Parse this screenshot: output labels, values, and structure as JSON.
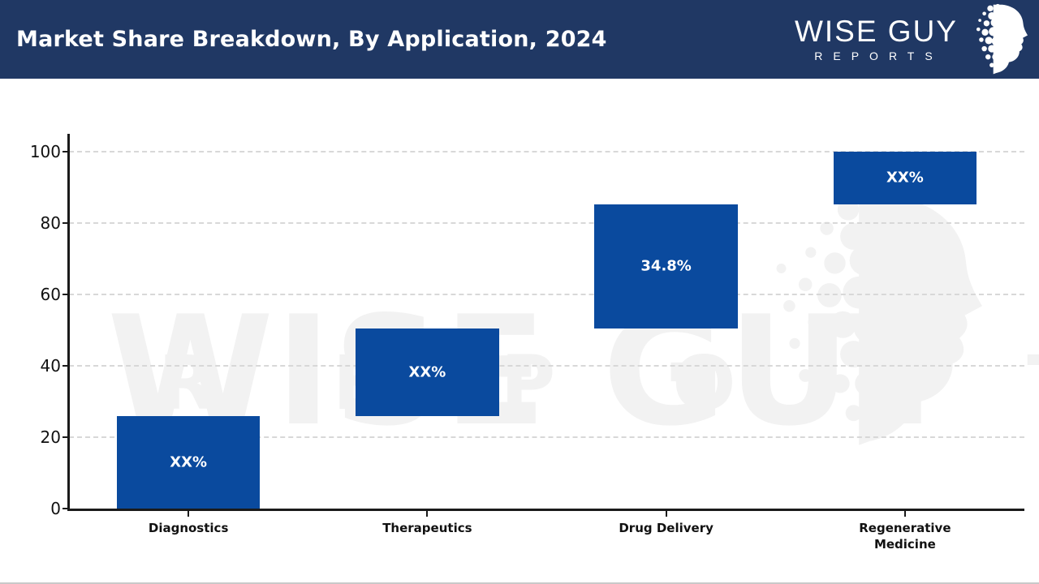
{
  "header": {
    "title": "Market Share Breakdown, By Application, 2024",
    "logo": {
      "wordmark": "WISE GUY",
      "sub": "REPORTS",
      "icon": "dotted-face-profile"
    }
  },
  "watermark": {
    "line1": "WISE GUY",
    "line2": "R E P O R T S",
    "icon": "dotted-face-profile"
  },
  "chart_data": {
    "type": "bar",
    "subtype": "waterfall",
    "title": "Market Share Breakdown, By Application, 2024",
    "xlabel": "",
    "ylabel": "",
    "categories": [
      "Diagnostics",
      "Therapeutics",
      "Drug Delivery",
      "Regenerative Medicine"
    ],
    "segments": [
      {
        "category": "Diagnostics",
        "start": 0,
        "end": 25.8,
        "label": "XX%"
      },
      {
        "category": "Therapeutics",
        "start": 25.8,
        "end": 50.5,
        "label": "XX%"
      },
      {
        "category": "Drug Delivery",
        "start": 50.5,
        "end": 85.3,
        "label": "34.8%"
      },
      {
        "category": "Regenerative Medicine",
        "start": 85.3,
        "end": 100,
        "label": "XX%"
      }
    ],
    "yticks": [
      0,
      20,
      40,
      60,
      80,
      100
    ],
    "ylim": [
      0,
      105
    ],
    "grid": "horizontal-dashed",
    "legend": "none",
    "bar_color": "#0a4a9e",
    "bar_label_color": "#ffffff"
  },
  "colors": {
    "header_bg": "#203864",
    "bar": "#0a4a9e",
    "watermark": "#f2f2f2",
    "grid": "#d8d8d8",
    "axis": "#1a1a1a",
    "bottom_rule": "#c9c9c9"
  }
}
